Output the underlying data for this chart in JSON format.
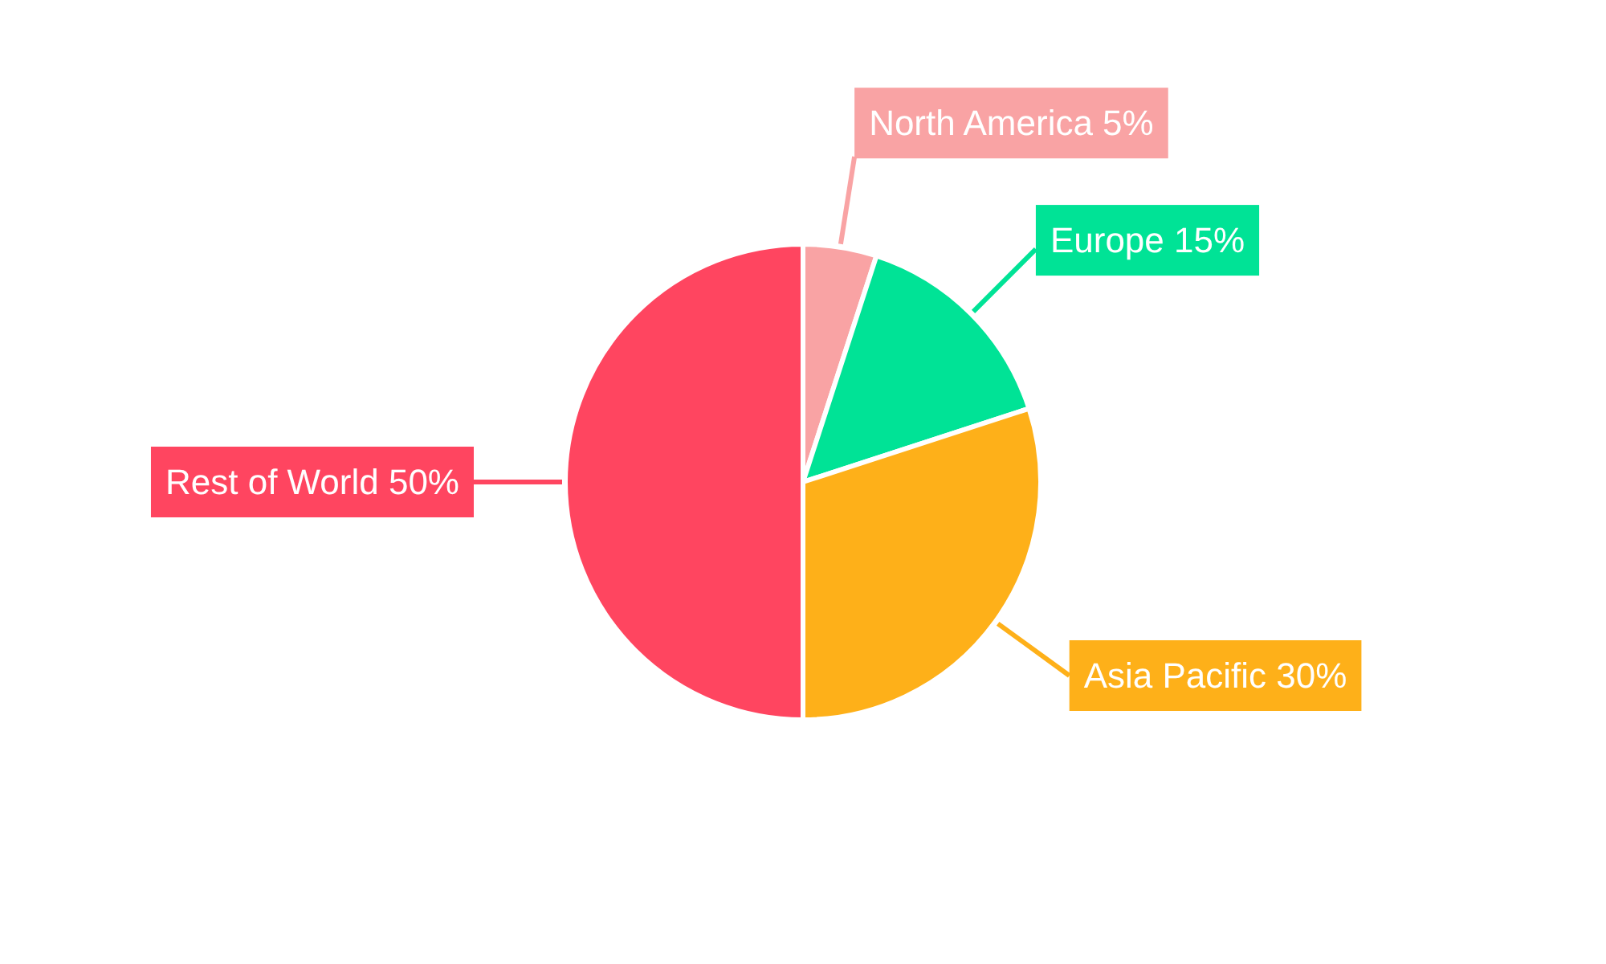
{
  "chart_data": {
    "type": "pie",
    "categories": [
      "North America",
      "Europe",
      "Asia Pacific",
      "Rest of World"
    ],
    "values": [
      5,
      15,
      30,
      50
    ],
    "colors": [
      "#f9a3a4",
      "#00e396",
      "#feb019",
      "#ff4560"
    ],
    "value_labels": [
      "5%",
      "15%",
      "30%",
      "50%"
    ]
  }
}
